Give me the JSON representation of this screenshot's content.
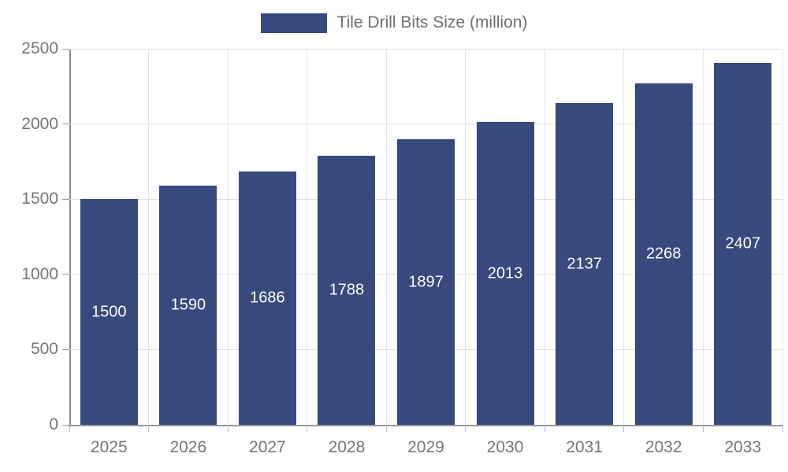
{
  "legend": {
    "label": "Tile Drill Bits Size (million)",
    "swatch_color": "#37497d"
  },
  "chart_data": {
    "type": "bar",
    "title": "Tile Drill Bits Size (million)",
    "categories": [
      "2025",
      "2026",
      "2027",
      "2028",
      "2029",
      "2030",
      "2031",
      "2032",
      "2033"
    ],
    "values": [
      1500,
      1590,
      1686,
      1788,
      1897,
      2013,
      2137,
      2268,
      2407
    ],
    "xlabel": "",
    "ylabel": "",
    "ylim": [
      0,
      2500
    ],
    "yticks": [
      0,
      500,
      1000,
      1500,
      2000,
      2500
    ],
    "grid": true,
    "legend_position": "top-center",
    "bar_color": "#37497d",
    "value_label_color": "#ffffff",
    "axis_text_color": "#757575",
    "grid_color": "#e0e0e0",
    "axis_line_color": "#8a8a8a"
  }
}
